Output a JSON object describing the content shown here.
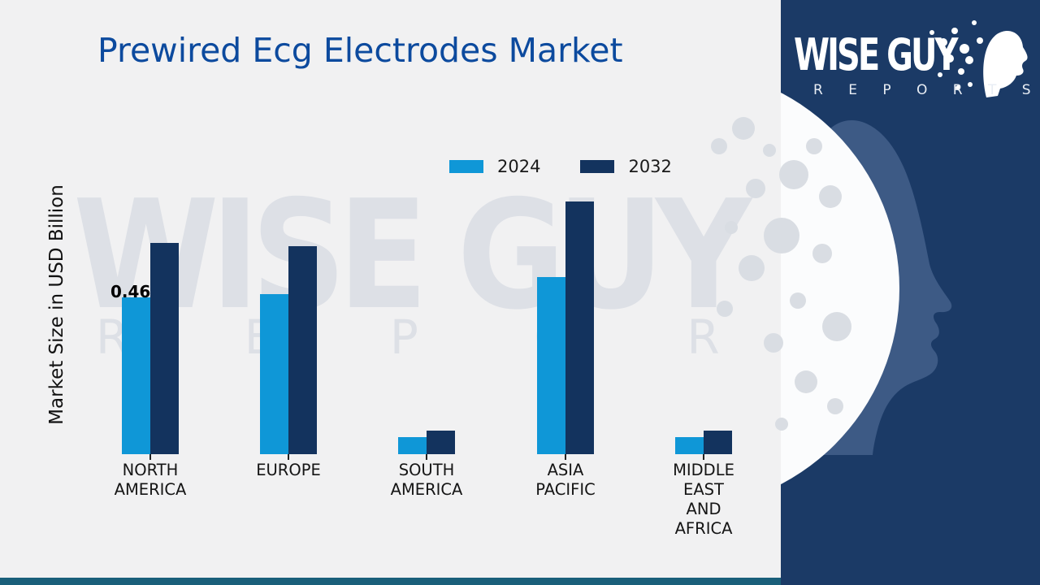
{
  "title": {
    "text": "Prewired Ecg Electrodes Market",
    "color": "#0c4a9e"
  },
  "logo": {
    "brand_top": "WISE GUY",
    "brand_bottom": "R E P O R T S",
    "panel_color": "#1b3a66",
    "footer_accent_color": "#1a5f7a",
    "face_icon": "head-profile-icon"
  },
  "watermark": {
    "big_text": "WISE GUY",
    "sub_text": "R E P O R T S"
  },
  "legend": {
    "items": [
      {
        "label": "2024",
        "color": "#0f97d7"
      },
      {
        "label": "2032",
        "color": "#13335e"
      }
    ]
  },
  "chart_data": {
    "type": "bar",
    "title": "Prewired Ecg Electrodes Market",
    "xlabel": "",
    "ylabel": "Market Size in USD Billion",
    "ylim": [
      0,
      0.8
    ],
    "grid": false,
    "legend_position": "top-center",
    "categories": [
      "NORTH AMERICA",
      "EUROPE",
      "SOUTH AMERICA",
      "ASIA PACIFIC",
      "MIDDLE EAST AND AFRICA"
    ],
    "series": [
      {
        "name": "2024",
        "color": "#0f97d7",
        "values": [
          0.46,
          0.47,
          0.05,
          0.52,
          0.05
        ]
      },
      {
        "name": "2032",
        "color": "#13335e",
        "values": [
          0.62,
          0.61,
          0.07,
          0.74,
          0.07
        ]
      }
    ],
    "annotations": [
      {
        "series": "2024",
        "category": "NORTH AMERICA",
        "text": "0.46"
      }
    ]
  }
}
